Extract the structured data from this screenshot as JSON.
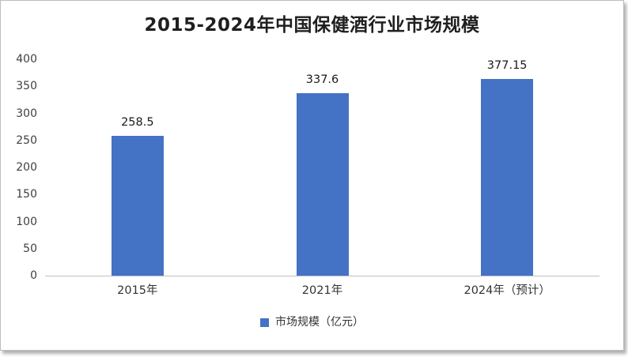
{
  "chart_data": {
    "type": "bar",
    "title": "2015-2024年中国保健酒行业市场规模",
    "categories": [
      "2015年",
      "2021年",
      "2024年（预计）"
    ],
    "values": [
      258.5,
      337.6,
      377.15
    ],
    "value_labels": [
      "258.5",
      "337.6",
      "377.15"
    ],
    "xlabel": "",
    "ylabel": "",
    "ylim": [
      0,
      400
    ],
    "y_ticks": [
      0,
      50,
      100,
      150,
      200,
      250,
      300,
      350,
      400
    ],
    "grid": false,
    "legend": {
      "position": "bottom",
      "entries": [
        "市场规模（亿元）"
      ]
    },
    "bar_color": "#4472C4"
  },
  "colors": {
    "bar": "#4472C4",
    "axis_line": "#bfbfbf",
    "tick_text": "#404040",
    "title_text": "#1f1f1f"
  }
}
